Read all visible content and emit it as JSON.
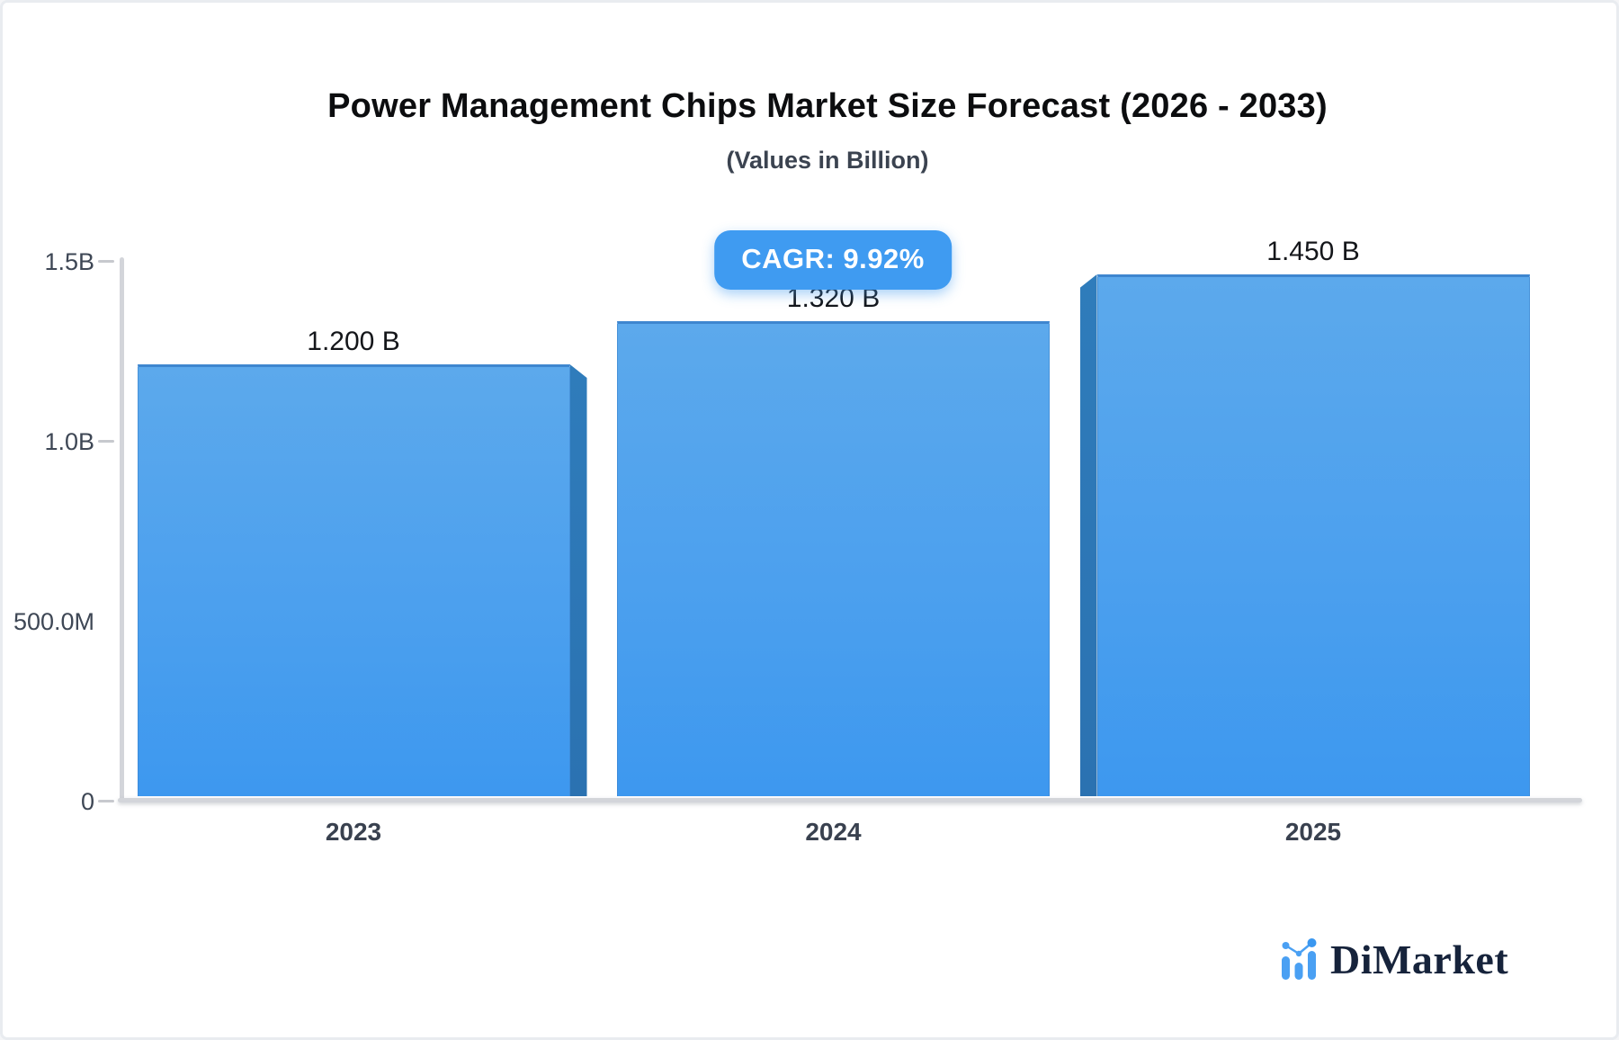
{
  "chart": {
    "title": "Power Management Chips Market Size Forecast (2026 - 2033)",
    "subtitle": "(Values in Billion)",
    "cagr_badge": "CAGR: 9.92%"
  },
  "chart_data": {
    "type": "bar",
    "title": "Power Management Chips Market Size Forecast (2026 - 2033)",
    "subtitle": "(Values in Billion)",
    "unit": "Billion",
    "cagr": "9.92%",
    "categories": [
      "2023",
      "2024",
      "2025"
    ],
    "values": [
      1.2,
      1.32,
      1.45
    ],
    "value_labels": [
      "1.200 B",
      "1.320 B",
      "1.450 B"
    ],
    "xlabel": "",
    "ylabel": "",
    "ylim": [
      0,
      1.5
    ],
    "yticks": [
      {
        "label": "1.5B",
        "value": 1.5,
        "dash": true
      },
      {
        "label": "1.0B",
        "value": 1.0,
        "dash": true
      },
      {
        "label": "500.0M",
        "value": 0.5,
        "dash": false
      },
      {
        "label": "0",
        "value": 0.0,
        "dash": true
      }
    ],
    "grid": false,
    "legend": false,
    "colors": {
      "bar_top": "#5CA9EC",
      "bar_bottom": "#3D98EF",
      "bar_side": "#2E78B7",
      "badge": "#3F9BF1",
      "axis": "#D3D5DA",
      "tick_text": "#3E4755",
      "label_text": "#14161A"
    }
  },
  "branding": {
    "logo_text": "DiMarket",
    "logo_icon": "bar-line-chart-icon",
    "logo_color": "#16233B",
    "logo_accent": "#4AA0F3"
  }
}
